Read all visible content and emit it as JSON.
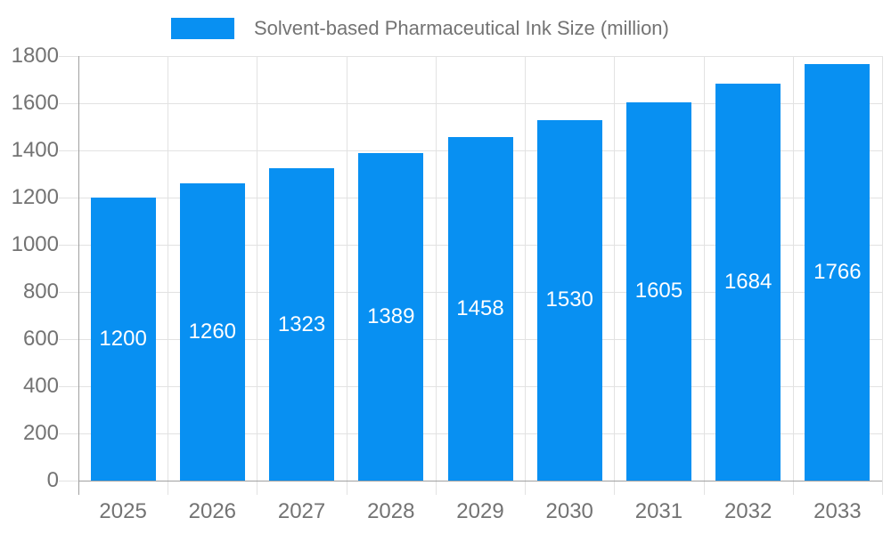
{
  "legend": {
    "label": "Solvent-based Pharmaceutical Ink Size (million)"
  },
  "chart_data": {
    "type": "bar",
    "title": "Solvent-based Pharmaceutical Ink Size (million)",
    "categories": [
      "2025",
      "2026",
      "2027",
      "2028",
      "2029",
      "2030",
      "2031",
      "2032",
      "2033"
    ],
    "values": [
      1200,
      1260,
      1323,
      1389,
      1458,
      1530,
      1605,
      1684,
      1766
    ],
    "xlabel": "",
    "ylabel": "",
    "ylim": [
      0,
      1800
    ],
    "y_tick_step": 200,
    "y_tick_labels": [
      "0",
      "200",
      "400",
      "600",
      "800",
      "1000",
      "1200",
      "1400",
      "1600",
      "1800"
    ],
    "grid": true,
    "legend_position": "top-center",
    "value_label_position": "inside-center"
  },
  "colors": {
    "bar": "#0890f2",
    "value_label_text": "#ffffff",
    "grid_line": "#e2e2e2",
    "axis_line": "#a0a0a0",
    "tick_text": "#737373",
    "legend_text": "#737373",
    "background": "#ffffff"
  }
}
